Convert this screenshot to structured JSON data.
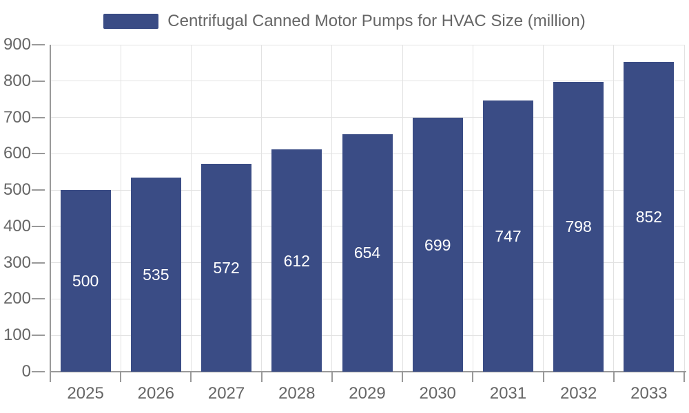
{
  "chart_data": {
    "type": "bar",
    "title": "Centrifugal Canned Motor Pumps for HVAC Size (million)",
    "legend_entries": [
      "Centrifugal Canned Motor Pumps for HVAC Size (million)"
    ],
    "legend_position": "top-center",
    "categories": [
      "2025",
      "2026",
      "2027",
      "2028",
      "2029",
      "2030",
      "2031",
      "2032",
      "2033"
    ],
    "values": [
      500,
      535,
      572,
      612,
      654,
      699,
      747,
      798,
      852
    ],
    "value_labels": [
      "500",
      "535",
      "572",
      "612",
      "654",
      "699",
      "747",
      "798",
      "852"
    ],
    "value_label_position": "inside-center",
    "xlabel": "",
    "ylabel": "",
    "ylim": [
      0,
      900
    ],
    "ytick_interval": 100,
    "ytick_labels": [
      "0",
      "100",
      "200",
      "300",
      "400",
      "500",
      "600",
      "700",
      "800",
      "900"
    ],
    "grid": true,
    "grid_vertical_at_band_edges": true,
    "colors": {
      "bar": "#3A4C85",
      "value_label": "#FFFFFF",
      "grid_line": "#E2E2E2",
      "axis_line": "#999999",
      "tick_label": "#666666",
      "legend_text": "#666666",
      "background": "#FFFFFF"
    }
  }
}
